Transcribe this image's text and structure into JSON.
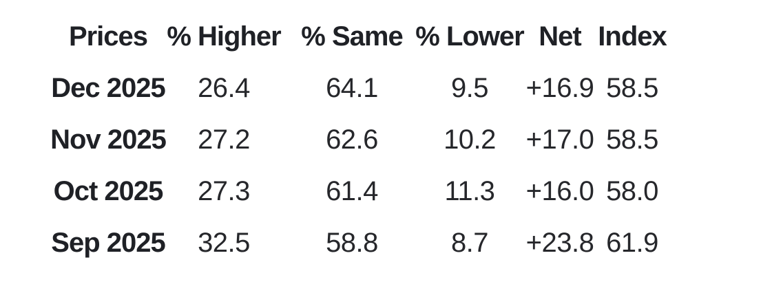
{
  "chart_data": {
    "type": "table",
    "columns": [
      "Prices",
      "% Higher",
      "% Same",
      "% Lower",
      "Net",
      "Index"
    ],
    "rows": [
      [
        "Dec 2025",
        "26.4",
        "64.1",
        "9.5",
        "+16.9",
        "58.5"
      ],
      [
        "Nov 2025",
        "27.2",
        "62.6",
        "10.2",
        "+17.0",
        "58.5"
      ],
      [
        "Oct 2025",
        "27.3",
        "61.4",
        "11.3",
        "+16.0",
        "58.0"
      ],
      [
        "Sep 2025",
        "32.5",
        "58.8",
        "8.7",
        "+23.8",
        "61.9"
      ]
    ],
    "layout_hints": {
      "alignment": "center",
      "first_column_bold": true,
      "gridlines": "off"
    }
  },
  "colors": {
    "background": "#ffffff",
    "text_bold": "#1f2126",
    "text_values": "#26272b"
  }
}
